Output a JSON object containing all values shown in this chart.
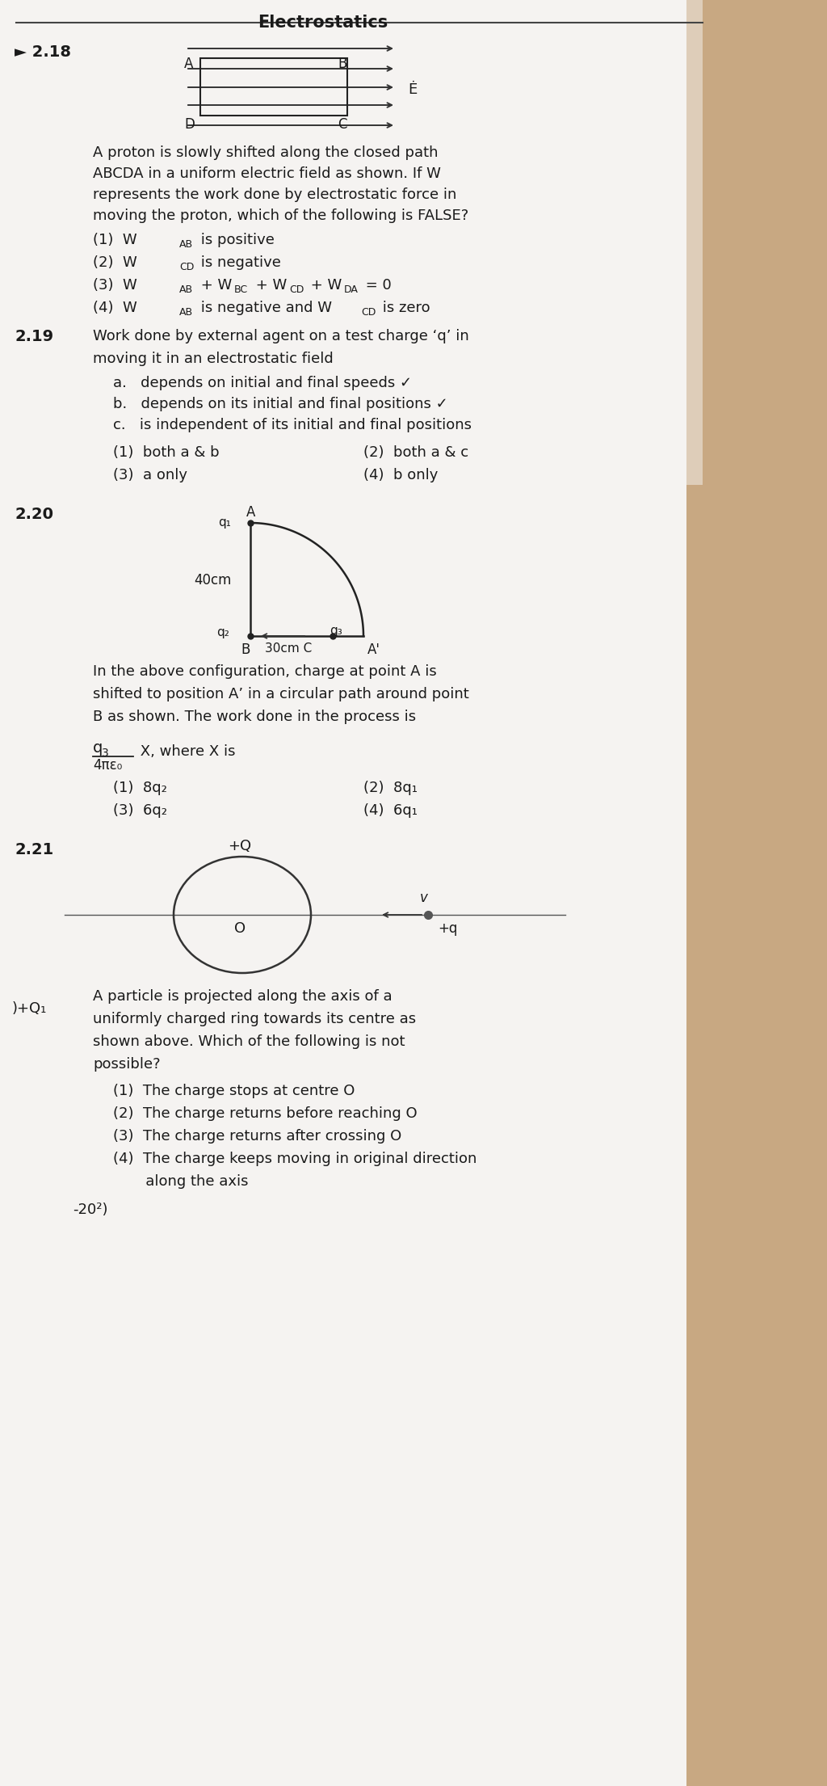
{
  "bg_color": "#e8e4e0",
  "paper_color": "#f0eeec",
  "text_color": "#1a1a1a",
  "page_title": "Electrostatics",
  "q218_label": "2.18",
  "q218_text_lines": [
    "A proton is slowly shifted along the closed path",
    "ABCDA in a uniform electric field as shown. If W",
    "represents the work done by electrostatic force in",
    "moving the proton, which of the following is FALSE?"
  ],
  "q219_label": "2.19",
  "q219_line1": "Work done by external agent on a test charge ‘q’ in",
  "q219_line2": "moving it in an electrostatic field",
  "q219_abc": [
    "a.   depends on initial and final speeds ✓",
    "b.   depends on its initial and final positions ✓",
    "c.   is independent of its initial and final positions"
  ],
  "q219_num": [
    [
      "(1)  both a & b",
      "(2)  both a & c"
    ],
    [
      "(3)  a only",
      "(4)  b only"
    ]
  ],
  "q220_label": "2.20",
  "q220_text": [
    "In the above configuration, charge at point A is",
    "shifted to position A’ in a circular path around point",
    "B as shown. The work done in the process is"
  ],
  "q220_num": [
    [
      "(1)  8q₂",
      "(2)  8q₁"
    ],
    [
      "(3)  6q₂",
      "(4)  6q₁"
    ]
  ],
  "q221_label": "2.21",
  "q221_text": [
    "A particle is projected along the axis of a",
    "uniformly charged ring towards its centre as",
    "shown above. Which of the following is not",
    "possible?"
  ],
  "q221_opts": [
    "(1)  The charge stops at centre O",
    "(2)  The charge returns before reaching O",
    "(3)  The charge returns after crossing O",
    "(4)  The charge keeps moving in original direction"
  ],
  "q221_opts_cont": "       along the axis",
  "footer": "-20²)"
}
